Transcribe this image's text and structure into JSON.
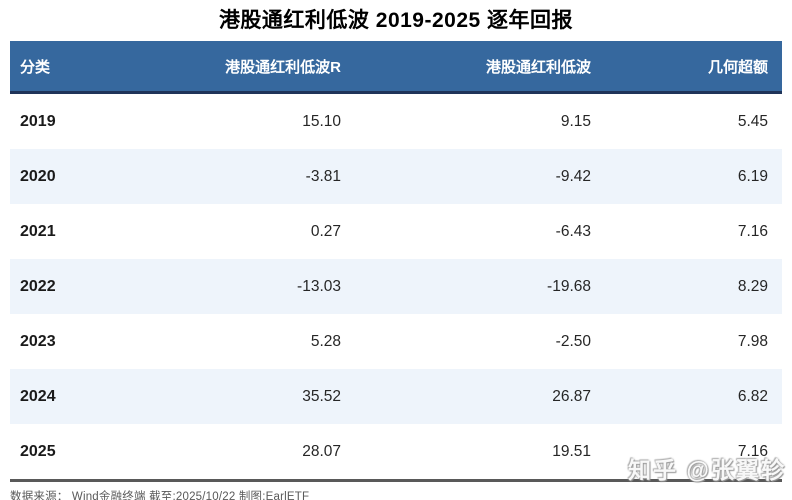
{
  "title": "港股通红利低波 2019-2025 逐年回报",
  "table": {
    "columns": [
      "分类",
      "港股通红利低波R",
      "港股通红利低波",
      "几何超额"
    ],
    "rows": [
      {
        "year": "2019",
        "cells": [
          "15.10",
          "9.15",
          "5.45"
        ]
      },
      {
        "year": "2020",
        "cells": [
          "-3.81",
          "-9.42",
          "6.19"
        ]
      },
      {
        "year": "2021",
        "cells": [
          "0.27",
          "-6.43",
          "7.16"
        ]
      },
      {
        "year": "2022",
        "cells": [
          "-13.03",
          "-19.68",
          "8.29"
        ]
      },
      {
        "year": "2023",
        "cells": [
          "5.28",
          "-2.50",
          "7.98"
        ]
      },
      {
        "year": "2024",
        "cells": [
          "35.52",
          "26.87",
          "6.82"
        ]
      },
      {
        "year": "2025",
        "cells": [
          "28.07",
          "19.51",
          "7.16"
        ]
      }
    ]
  },
  "footer": {
    "source": "数据来源： Wind金融终端 截至:2025/10/22 制图:EarlETF"
  },
  "watermark": "知乎 @张翼轸",
  "colors": {
    "header_bg": "#36689E",
    "header_text": "#FFFFFF",
    "header_border": "#1F3459",
    "stripe_row_bg": "#EEF4FB",
    "table_bottom_border": "#595959",
    "body_text": "#262626",
    "source_text": "#595959"
  },
  "chart_data": {
    "type": "table",
    "title": "港股通红利低波 2019-2025 逐年回报",
    "columns": [
      "分类",
      "港股通红利低波R",
      "港股通红利低波",
      "几何超额"
    ],
    "rows": [
      [
        "2019",
        15.1,
        9.15,
        5.45
      ],
      [
        "2020",
        -3.81,
        -9.42,
        6.19
      ],
      [
        "2021",
        0.27,
        -6.43,
        7.16
      ],
      [
        "2022",
        -13.03,
        -19.68,
        8.29
      ],
      [
        "2023",
        5.28,
        -2.5,
        7.98
      ],
      [
        "2024",
        35.52,
        26.87,
        6.82
      ],
      [
        "2025",
        28.07,
        19.51,
        7.16
      ]
    ],
    "source": "数据来源： Wind金融终端 截至:2025/10/22 制图:EarlETF"
  }
}
